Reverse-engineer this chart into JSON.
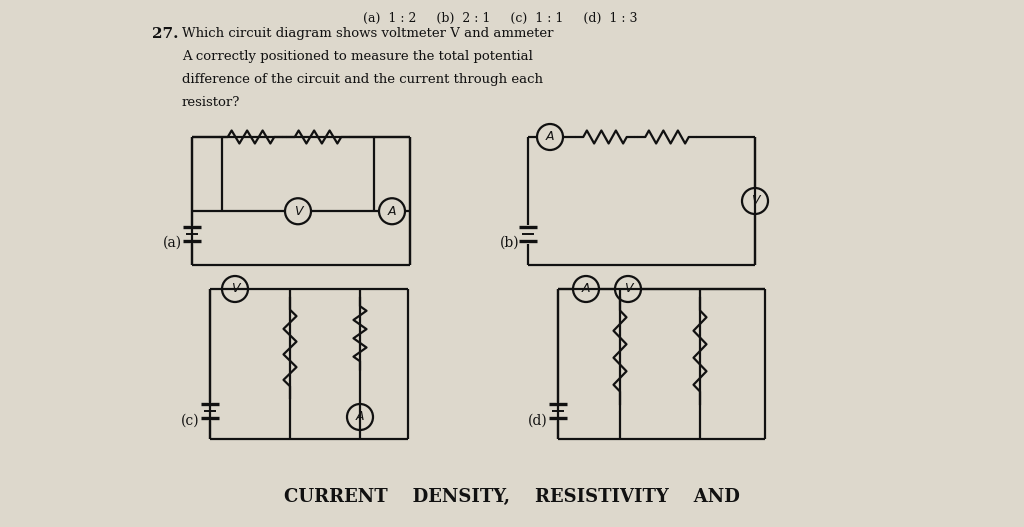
{
  "bg_color": "#ddd8cc",
  "text_color": "#111111",
  "line_color": "#111111",
  "title_line1": "Which circuit diagram shows voltmeter V and ammeter",
  "title_line2": "A correctly positioned to measure the total potential",
  "title_line3": "difference of the circuit and the current through each",
  "title_line4": "resistor?",
  "question_num": "27.",
  "header_text": "(a)  1 : 2     (b)  2 : 1     (c)  1 : 1     (d)  1 : 3",
  "footer_text": "CURRENT    DENSITY,    RESISTIVITY    AND",
  "label_a": "(a)",
  "label_b": "(b)",
  "label_c": "(c)",
  "label_d": "(d)"
}
